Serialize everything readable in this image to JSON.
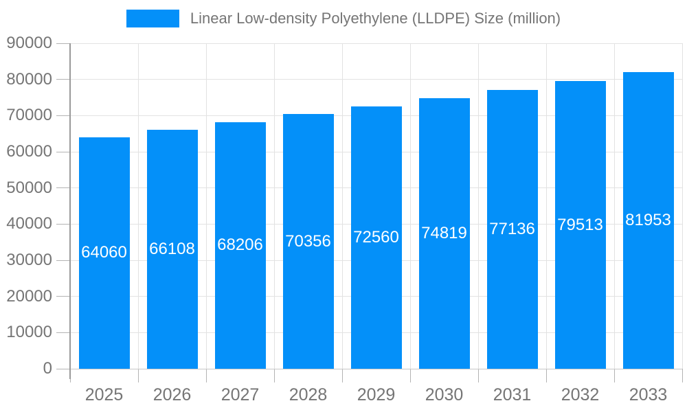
{
  "legend": {
    "label": "Linear Low-density Polyethylene (LLDPE) Size (million)"
  },
  "chart_data": {
    "type": "bar",
    "title": "Linear Low-density Polyethylene (LLDPE) Size (million)",
    "categories": [
      "2025",
      "2026",
      "2027",
      "2028",
      "2029",
      "2030",
      "2031",
      "2032",
      "2033"
    ],
    "values": [
      64060,
      66108,
      68206,
      70356,
      72560,
      74819,
      77136,
      79513,
      81953
    ],
    "xlabel": "",
    "ylabel": "",
    "ylim": [
      0,
      90000
    ],
    "ytick_step": 10000,
    "yticks": [
      0,
      10000,
      20000,
      30000,
      40000,
      50000,
      60000,
      70000,
      80000,
      90000
    ],
    "grid": true,
    "legend_position": "top",
    "bar_color": "#0490f9",
    "value_label_color": "#ffffff",
    "axis_text_color": "#757575",
    "grid_color": "#e2e2e2",
    "axis_line_color": "#999999",
    "tick_color": "#b3b3b3",
    "baseline_color": "#c8c8c8"
  }
}
